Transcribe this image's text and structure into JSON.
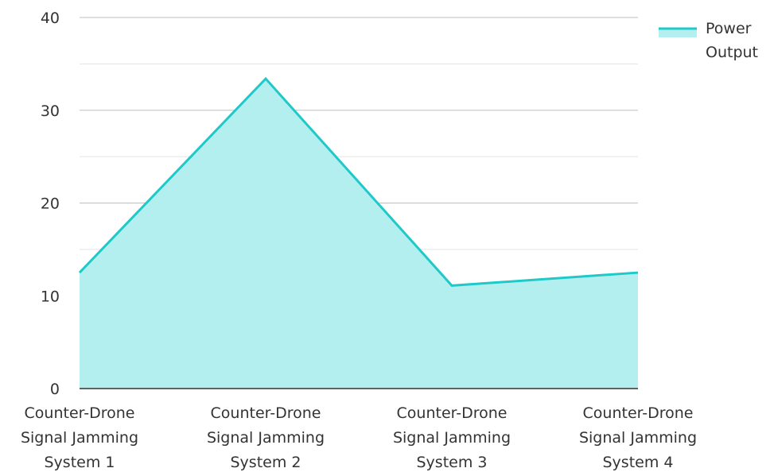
{
  "chart_data": {
    "type": "area",
    "categories": [
      "Counter-Drone Signal Jamming System 1",
      "Counter-Drone Signal Jamming System 2",
      "Counter-Drone Signal Jamming System 3",
      "Counter-Drone Signal Jamming System 4"
    ],
    "category_lines": [
      [
        "Counter-Drone",
        "Signal Jamming",
        "System 1"
      ],
      [
        "Counter-Drone",
        "Signal Jamming",
        "System 2"
      ],
      [
        "Counter-Drone",
        "Signal Jamming",
        "System 3"
      ],
      [
        "Counter-Drone",
        "Signal Jamming",
        "System 4"
      ]
    ],
    "series": [
      {
        "name": "Power Output",
        "values": [
          12.5,
          33.4,
          11.1,
          12.5
        ],
        "line_color": "#20c9c9",
        "fill_color": "#b2efee"
      }
    ],
    "legend_lines": [
      "Power",
      "Output"
    ],
    "y_ticks": [
      0,
      10,
      20,
      30,
      40
    ],
    "ylim": [
      0,
      40
    ],
    "minor_grid_step": 5,
    "grid": true,
    "legend_position": "top-right",
    "title": "",
    "xlabel": "",
    "ylabel": ""
  }
}
